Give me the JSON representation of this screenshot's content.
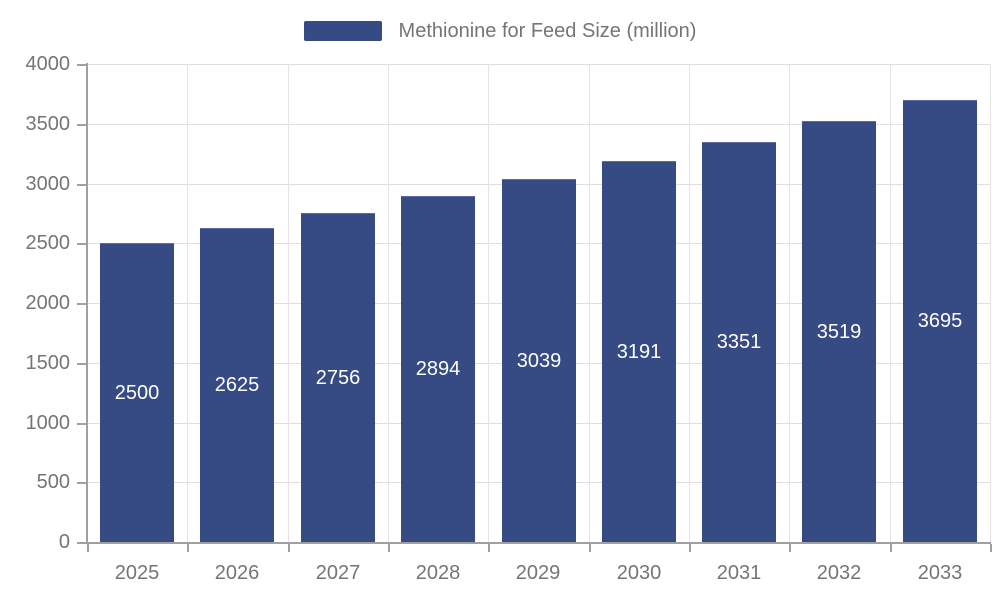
{
  "chart_data": {
    "type": "bar",
    "title": "Methionine for Feed Size (million)",
    "categories": [
      "2025",
      "2026",
      "2027",
      "2028",
      "2029",
      "2030",
      "2031",
      "2032",
      "2033"
    ],
    "values": [
      2500,
      2625,
      2756,
      2894,
      3039,
      3191,
      3351,
      3519,
      3695
    ],
    "xlabel": "",
    "ylabel": "",
    "ylim": [
      0,
      4000
    ],
    "ytick_step": 500,
    "ytick_labels": [
      "0",
      "500",
      "1000",
      "1500",
      "2000",
      "2500",
      "3000",
      "3500",
      "4000"
    ],
    "grid": true,
    "legend_position": "top-center",
    "colors": {
      "bar": "#364a84",
      "bar_border": "#5c6b9d",
      "value_label": "#ffffff",
      "axis": "#a0a0a0",
      "grid": "#e0e0e0",
      "tick_text": "#757575",
      "legend_text": "#757575",
      "background": "#ffffff"
    }
  }
}
